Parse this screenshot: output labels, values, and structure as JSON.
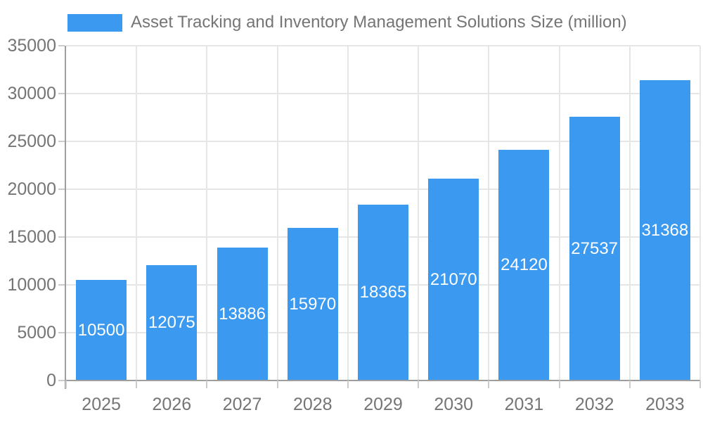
{
  "chart_data": {
    "type": "bar",
    "title": "Asset Tracking and Inventory Management Solutions Size (million)",
    "categories": [
      "2025",
      "2026",
      "2027",
      "2028",
      "2029",
      "2030",
      "2031",
      "2032",
      "2033"
    ],
    "series": [
      {
        "name": "Asset Tracking and Inventory Management Solutions Size (million)",
        "values": [
          10500,
          12075,
          13886,
          15970,
          18365,
          21070,
          24120,
          27537,
          31368
        ]
      }
    ],
    "xlabel": "",
    "ylabel": "",
    "ylim": [
      0,
      35000
    ],
    "ytick_interval": 5000,
    "yticks": [
      0,
      5000,
      10000,
      15000,
      20000,
      25000,
      30000,
      35000
    ],
    "grid": true,
    "legend_position": "top-left",
    "value_labels": "inside-center-white",
    "colors": {
      "bar": "#3B99F0",
      "grid": "#e6e6e6",
      "axis": "#9e9e9e",
      "tick": "#cccccc",
      "text": "#757575",
      "value_label": "#ffffff",
      "background": "#ffffff"
    }
  }
}
